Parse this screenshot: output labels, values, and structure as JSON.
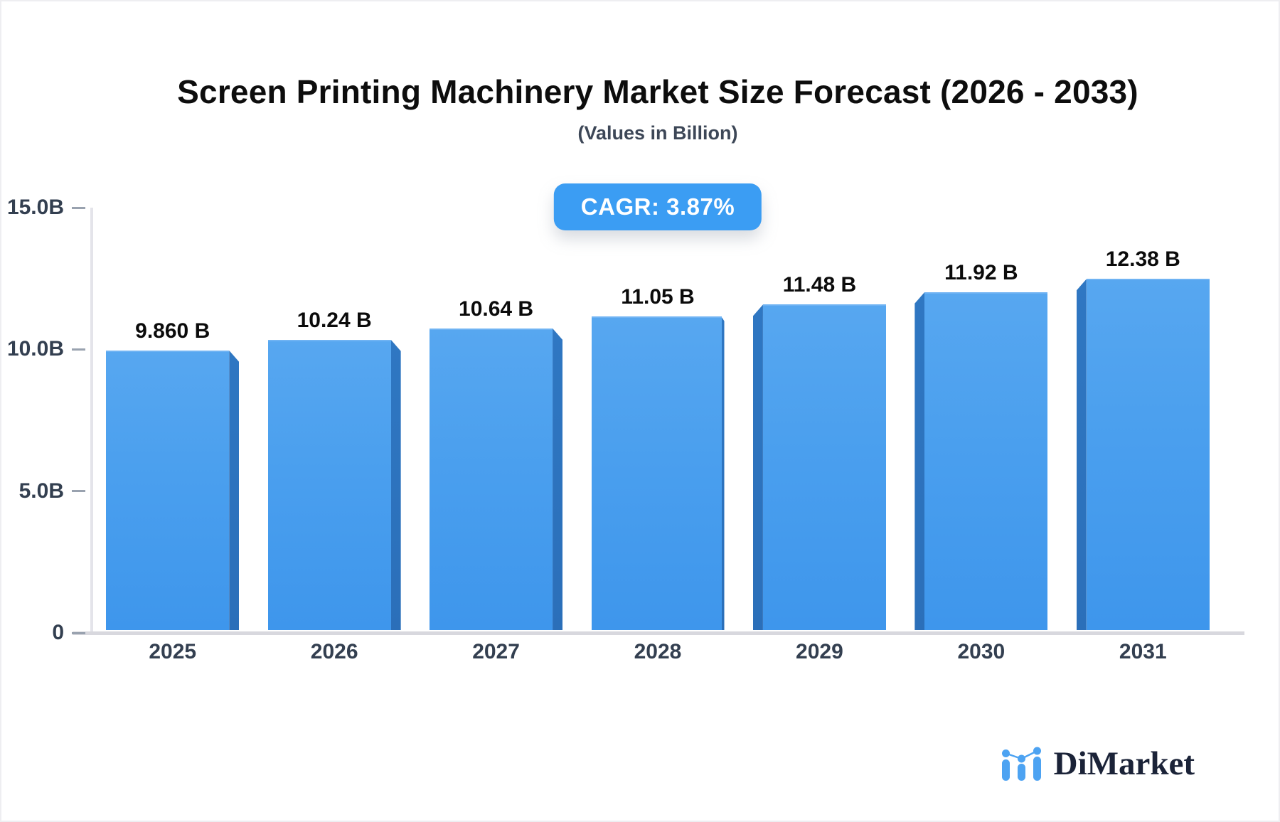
{
  "header": {
    "title": "Screen Printing Machinery Market Size Forecast (2026 - 2033)",
    "subtitle": "(Values in Billion)",
    "cagr_label": "CAGR: 3.87%"
  },
  "chart_data": {
    "type": "bar",
    "title": "Screen Printing Machinery Market Size Forecast (2026 - 2033)",
    "subtitle": "(Values in Billion)",
    "cagr": "3.87%",
    "categories": [
      "2025",
      "2026",
      "2027",
      "2028",
      "2029",
      "2030",
      "2031"
    ],
    "values": [
      9.86,
      10.24,
      10.64,
      11.05,
      11.48,
      11.92,
      12.38
    ],
    "bar_labels": [
      "9.860 B",
      "10.24 B",
      "10.64 B",
      "11.05 B",
      "11.48 B",
      "11.92 B",
      "12.38 B"
    ],
    "xlabel": "",
    "ylabel": "",
    "ylim": [
      0,
      15
    ],
    "yticks": [
      {
        "value": 15,
        "label": "15.0B"
      },
      {
        "value": 10,
        "label": "10.0B"
      },
      {
        "value": 5,
        "label": "5.0B"
      },
      {
        "value": 0,
        "label": "0"
      }
    ],
    "grid": false,
    "legend": false,
    "style": "3d-bars-center-perspective",
    "colors": {
      "bar_face_top": "#57a7f0",
      "bar_face_bottom": "#3e96ec",
      "bar_side": "#2f77c2",
      "badge_bg": "#3b9df3",
      "badge_text": "#ffffff",
      "axis_line": "#e4e4ea",
      "baseline": "#d8d8de",
      "tick_text": "#333f50",
      "value_label_text": "#0b0b0b",
      "title_text": "#0d0d0d",
      "subtitle_text": "#3d4757",
      "logo_blue": "#4da3f2",
      "logo_text": "#1b2338"
    }
  },
  "footer": {
    "brand": "DiMarket"
  }
}
